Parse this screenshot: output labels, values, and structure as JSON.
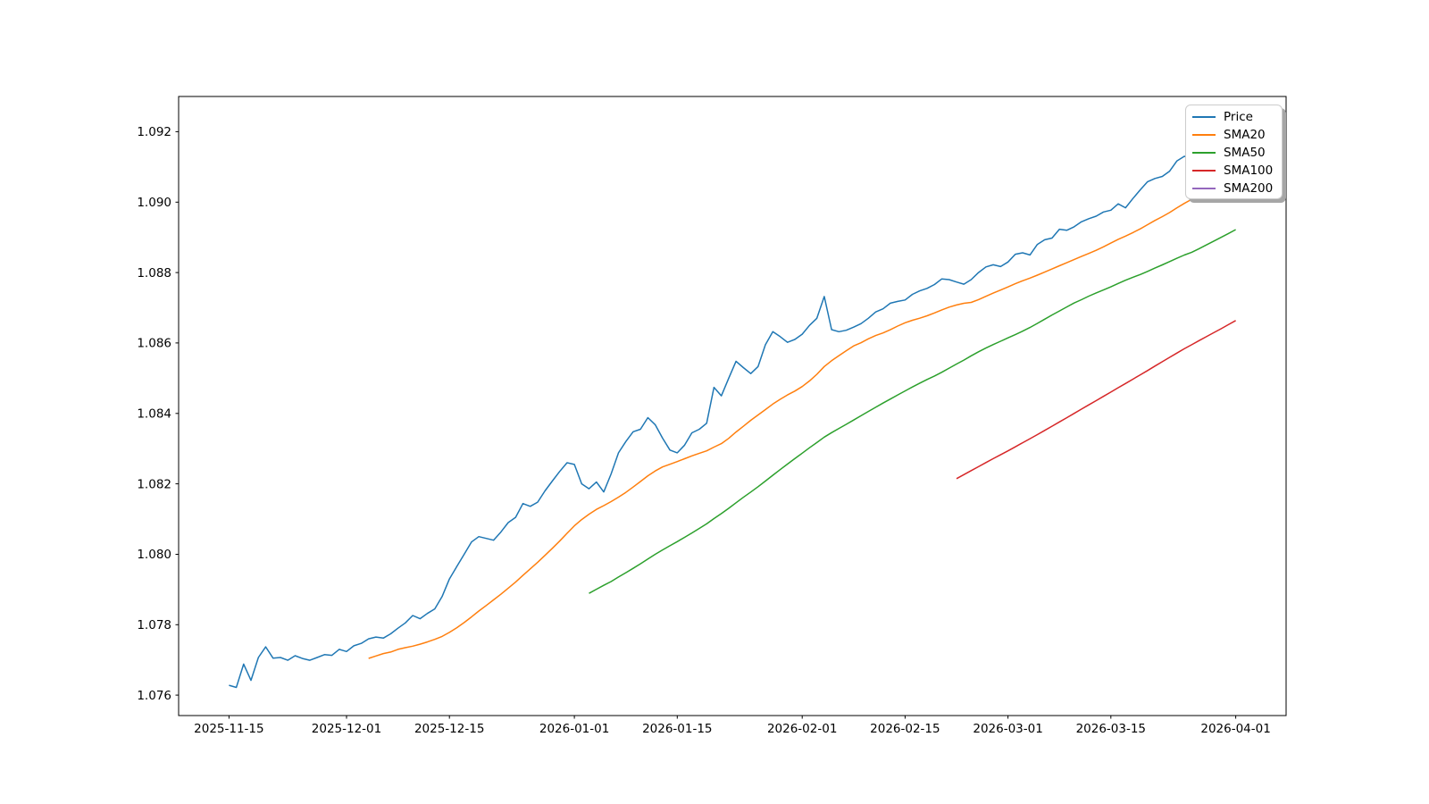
{
  "figure": {
    "background": "#ffffff",
    "plot_border_color": "#000000"
  },
  "chart_data": {
    "type": "line",
    "title": "",
    "xlabel": "",
    "ylabel": "",
    "grid": false,
    "x_axis": {
      "start_date": "2025-11-15",
      "frequency": "daily",
      "xlim_days": [
        -6.85,
        143.85
      ],
      "tick_days": [
        0,
        16,
        30,
        47,
        61,
        78,
        92,
        106,
        120,
        137
      ],
      "tick_labels": [
        "2025-11-15",
        "2025-12-01",
        "2025-12-15",
        "2026-01-01",
        "2026-01-15",
        "2026-02-01",
        "2026-02-15",
        "2026-03-01",
        "2026-03-15",
        "2026-04-01"
      ]
    },
    "y_axis": {
      "ylim": [
        1.07542,
        1.093
      ],
      "tick_values": [
        1.076,
        1.078,
        1.08,
        1.082,
        1.084,
        1.086,
        1.088,
        1.09,
        1.092
      ],
      "tick_labels": [
        "1.076",
        "1.078",
        "1.080",
        "1.082",
        "1.084",
        "1.086",
        "1.088",
        "1.090",
        "1.092"
      ]
    },
    "series": [
      {
        "name": "Price",
        "color": "#1f77b4",
        "line_width": 1.5,
        "values": [
          1.07628,
          1.07622,
          1.07688,
          1.07642,
          1.07707,
          1.07737,
          1.07705,
          1.07707,
          1.07699,
          1.07712,
          1.07704,
          1.07699,
          1.07707,
          1.07715,
          1.07713,
          1.0773,
          1.07724,
          1.0774,
          1.07747,
          1.0776,
          1.07765,
          1.07762,
          1.07774,
          1.0779,
          1.07805,
          1.07826,
          1.07817,
          1.07832,
          1.07845,
          1.0788,
          1.0793,
          1.07965,
          1.08,
          1.08035,
          1.0805,
          1.08045,
          1.0804,
          1.08063,
          1.0809,
          1.08105,
          1.08144,
          1.08136,
          1.08148,
          1.0818,
          1.08208,
          1.08235,
          1.0826,
          1.08255,
          1.082,
          1.08186,
          1.08205,
          1.08177,
          1.08228,
          1.08288,
          1.0832,
          1.08348,
          1.08355,
          1.08388,
          1.08368,
          1.0833,
          1.08296,
          1.08288,
          1.0831,
          1.08345,
          1.08355,
          1.08372,
          1.08474,
          1.0845,
          1.085,
          1.08548,
          1.0853,
          1.08513,
          1.08533,
          1.08595,
          1.08632,
          1.08618,
          1.08602,
          1.0861,
          1.08625,
          1.0865,
          1.0867,
          1.08732,
          1.08638,
          1.08632,
          1.08636,
          1.08645,
          1.08655,
          1.0867,
          1.08688,
          1.08697,
          1.08713,
          1.08718,
          1.08722,
          1.08738,
          1.08748,
          1.08755,
          1.08766,
          1.08782,
          1.0878,
          1.08773,
          1.08767,
          1.0878,
          1.088,
          1.08816,
          1.08822,
          1.08817,
          1.0883,
          1.08852,
          1.08856,
          1.0885,
          1.0888,
          1.08893,
          1.08898,
          1.08923,
          1.0892,
          1.0893,
          1.08944,
          1.08953,
          1.0896,
          1.08972,
          1.08977,
          1.08995,
          1.08984,
          1.0901,
          1.09035,
          1.09058,
          1.09067,
          1.09073,
          1.09088,
          1.09117,
          1.0913,
          1.09127,
          1.0915,
          1.09165,
          1.0917,
          1.09185,
          1.09205,
          1.0922
        ]
      },
      {
        "name": "SMA20",
        "color": "#ff7f0e",
        "line_width": 1.5,
        "derived": "rolling_mean_of_Price",
        "window": 20
      },
      {
        "name": "SMA50",
        "color": "#2ca02c",
        "line_width": 1.5,
        "derived": "rolling_mean_of_Price",
        "window": 50
      },
      {
        "name": "SMA100",
        "color": "#d62728",
        "line_width": 1.5,
        "derived": "rolling_mean_of_Price",
        "window": 100
      },
      {
        "name": "SMA200",
        "color": "#9467bd",
        "line_width": 1.5,
        "derived": "rolling_mean_of_Price",
        "window": 200,
        "note": "window longer than data; no line visible"
      }
    ],
    "legend": {
      "location": "upper right",
      "shadow": true,
      "entries": [
        "Price",
        "SMA20",
        "SMA50",
        "SMA100",
        "SMA200"
      ]
    }
  }
}
